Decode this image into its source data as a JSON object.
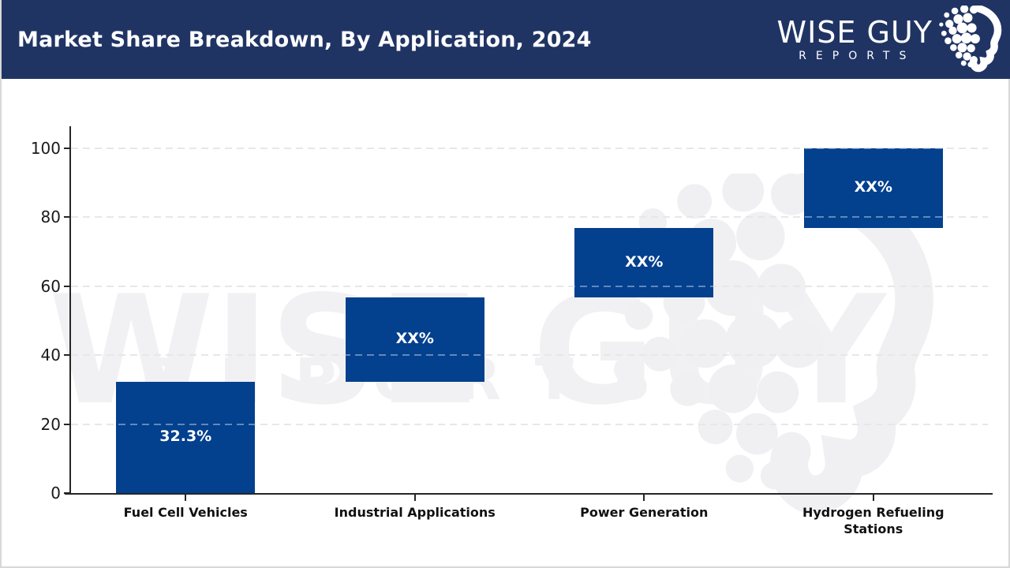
{
  "header": {
    "title": "Market Share Breakdown, By Application, 2024",
    "logo": {
      "line1": "WISE GUY",
      "line2": "REPORTS"
    }
  },
  "watermark": {
    "line1": "WISE GUY",
    "line2": "REPORTS"
  },
  "chart_data": {
    "type": "bar",
    "subtype": "waterfall",
    "title": "Market Share Breakdown, By Application, 2024",
    "xlabel": "",
    "ylabel": "",
    "categories": [
      "Fuel Cell Vehicles",
      "Industrial Applications",
      "Power Generation",
      "Hydrogen Refueling Stations"
    ],
    "segments": [
      {
        "category": "Fuel Cell Vehicles",
        "start": 0,
        "end": 32.3,
        "value_label": "32.3%"
      },
      {
        "category": "Industrial Applications",
        "start": 32.3,
        "end": 56.7,
        "value_label": "XX%"
      },
      {
        "category": "Power Generation",
        "start": 56.7,
        "end": 76.8,
        "value_label": "XX%"
      },
      {
        "category": "Hydrogen Refueling Stations",
        "start": 76.8,
        "end": 100,
        "value_label": "XX%"
      }
    ],
    "yticks": [
      0,
      20,
      40,
      60,
      80,
      100
    ],
    "ylim": [
      0,
      106.3
    ],
    "grid": "dashed horizontal",
    "legend": "none",
    "bar_color": "#03408e"
  },
  "colors": {
    "header_bg": "#203464",
    "bar": "#03408e",
    "grid": "#d9d9d9",
    "axis": "#262626",
    "watermark": "#f1f1f3",
    "title_text": "#ffffff",
    "tick_text": "#1a1a1a"
  }
}
